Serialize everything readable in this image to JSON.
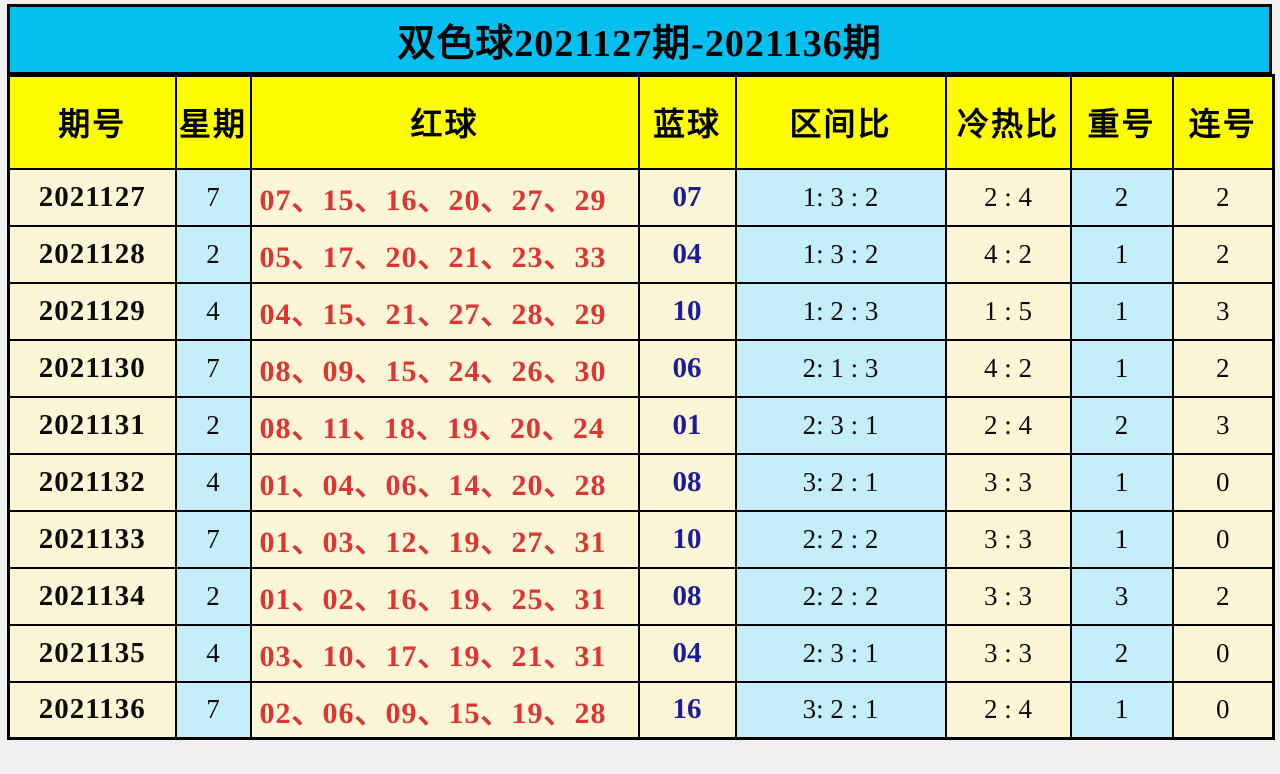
{
  "title": "双色球2021127期-2021136期",
  "colors": {
    "title_bg": "#04c0f0",
    "header_bg": "#fdfd00",
    "cell_cream": "#fdf6d6",
    "cell_lightblue": "#c5eefb",
    "red_ball_text": "#dd3434",
    "blue_ball_text": "#1c1c9a",
    "border": "#000000",
    "page_bg": "#eff1ee"
  },
  "chart_data": {
    "type": "table",
    "title": "双色球2021127期-2021136期",
    "columns": [
      "期号",
      "星期",
      "红球",
      "蓝球",
      "区间比",
      "冷热比",
      "重号",
      "连号"
    ],
    "rows": [
      [
        "2021127",
        "7",
        "07、15、16、20、27、29",
        "07",
        "1:  3 : 2",
        "2 : 4",
        "2",
        "2"
      ],
      [
        "2021128",
        "2",
        "05、17、20、21、23、33",
        "04",
        "1:  3 : 2",
        "4 : 2",
        "1",
        "2"
      ],
      [
        "2021129",
        "4",
        "04、15、21、27、28、29",
        "10",
        "1:  2 : 3",
        "1 : 5",
        "1",
        "3"
      ],
      [
        "2021130",
        "7",
        "08、09、15、24、26、30",
        "06",
        "2:  1 : 3",
        "4 : 2",
        "1",
        "2"
      ],
      [
        "2021131",
        "2",
        "08、11、18、19、20、24",
        "01",
        "2:  3 : 1",
        "2 : 4",
        "2",
        "3"
      ],
      [
        "2021132",
        "4",
        "01、04、06、14、20、28",
        "08",
        "3:  2 : 1",
        "3 : 3",
        "1",
        "0"
      ],
      [
        "2021133",
        "7",
        "01、03、12、19、27、31",
        "10",
        "2:  2 : 2",
        "3 : 3",
        "1",
        "0"
      ],
      [
        "2021134",
        "2",
        "01、02、16、19、25、31",
        "08",
        "2:  2 : 2",
        "3 : 3",
        "3",
        "2"
      ],
      [
        "2021135",
        "4",
        "03、10、17、19、21、31",
        "04",
        "2:  3 : 1",
        "3 : 3",
        "2",
        "0"
      ],
      [
        "2021136",
        "7",
        "02、06、09、15、19、28",
        "16",
        "3:  2 : 1",
        "2 : 4",
        "1",
        "0"
      ]
    ]
  }
}
